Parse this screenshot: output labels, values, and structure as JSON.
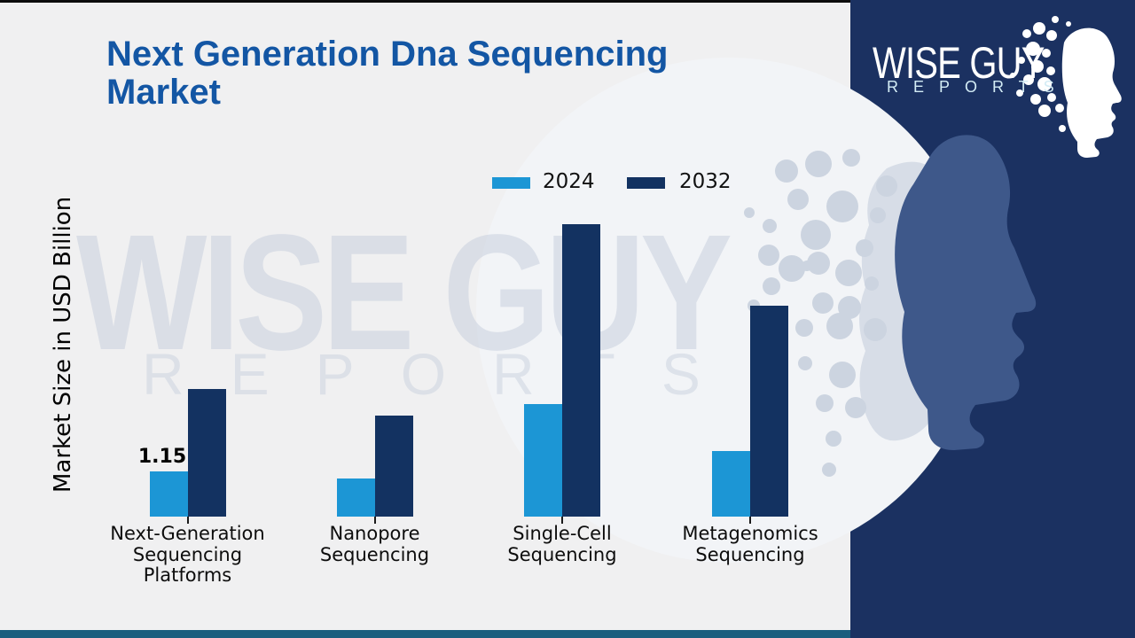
{
  "page": {
    "background": "#f0f0f1",
    "top_bar_color": "#0d0d0d",
    "bottom_bar_color": "#1A5E7E",
    "right_panel_color": "#1B3161"
  },
  "header": {
    "title": "Next Generation Dna Sequencing Market",
    "title_color": "#1356a4"
  },
  "y_axis": {
    "label": "Market Size in USD Billion"
  },
  "legend": {
    "items": [
      {
        "label": "2024",
        "color": "#1C96D5"
      },
      {
        "label": "2032",
        "color": "#133261"
      }
    ]
  },
  "chart_data": {
    "type": "bar",
    "title": "Next Generation Dna Sequencing Market",
    "xlabel": "",
    "ylabel": "Market Size in USD Billion",
    "categories": [
      "Next-Generation\nSequencing\nPlatforms",
      "Nanopore\nSequencing",
      "Single-Cell\nSequencing",
      "Metagenomics\nSequencing"
    ],
    "series": [
      {
        "name": "2024",
        "color": "#1C96D5",
        "values": [
          1.15,
          0.97,
          2.86,
          1.67
        ]
      },
      {
        "name": "2032",
        "color": "#133261",
        "values": [
          3.25,
          2.57,
          7.44,
          5.37
        ]
      }
    ],
    "annotations": [
      {
        "category_index": 0,
        "series_index": 0,
        "text": "1.15"
      }
    ],
    "ylim": [
      0,
      8
    ],
    "grid": false,
    "axis_line": false,
    "legend_position": "top-center"
  },
  "watermark": {
    "line1": "WISE GUY",
    "line2": "REPORTS"
  },
  "logo": {
    "line1": "WISE GUY",
    "line2": "REPORTS"
  }
}
